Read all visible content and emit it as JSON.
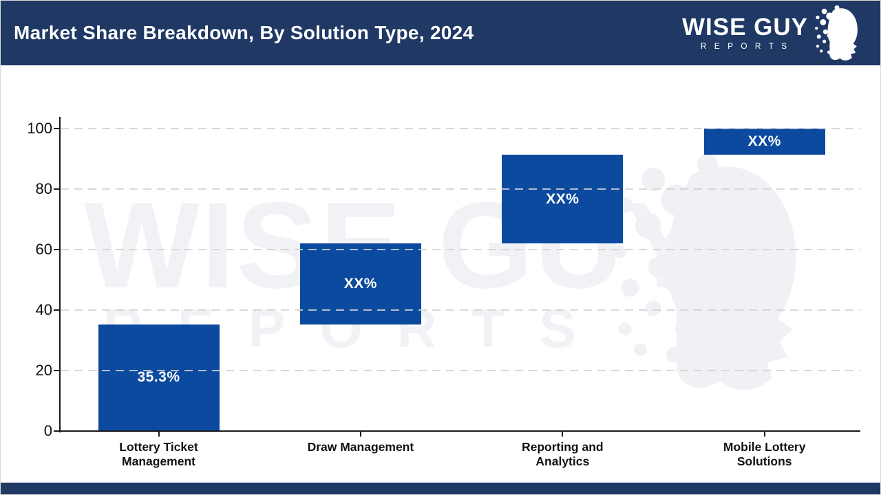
{
  "page": {
    "background": "#ffffff",
    "frame_border_color": "#d9d9d9"
  },
  "header": {
    "bg": "#1F3864",
    "title": "Market Share Breakdown, By Solution Type, 2024",
    "logo": {
      "line1": "WISE GUY",
      "line2": "R E P O R T S",
      "head_icon": "dotted-head-profile"
    }
  },
  "footer": {
    "bg": "#1F3864"
  },
  "watermark": {
    "line1": "WISE GUY",
    "line2": "REPORTS",
    "head_icon": "dotted-head-profile",
    "color": "#f1f2f5"
  },
  "chart_data": {
    "type": "bar",
    "variant": "waterfall",
    "title": "Market Share Breakdown, By Solution Type, 2024",
    "categories": [
      "Lottery Ticket Management",
      "Draw Management",
      "Reporting and Analytics",
      "Mobile Lottery Solutions"
    ],
    "category_display": [
      "Lottery Ticket\nManagement",
      "Draw Management",
      "Reporting and\nAnalytics",
      "Mobile Lottery\nSolutions"
    ],
    "segments": [
      {
        "start": 0,
        "end": 35.3,
        "label": "35.3%"
      },
      {
        "start": 35.3,
        "end": 62.0,
        "label": "XX%"
      },
      {
        "start": 62.0,
        "end": 91.3,
        "label": "XX%"
      },
      {
        "start": 91.3,
        "end": 100.0,
        "label": "XX%"
      }
    ],
    "yticks": [
      0,
      20,
      40,
      60,
      80,
      100
    ],
    "ylim": [
      0,
      104
    ],
    "xlabel": "",
    "ylabel": "",
    "legend": "none",
    "grid": "horizontal-dashed",
    "grid_color": "#d2d2d2",
    "bar_color": "#0B4A9E",
    "bar_label_color": "#ffffff",
    "axis_color": "#1a1a1a"
  }
}
